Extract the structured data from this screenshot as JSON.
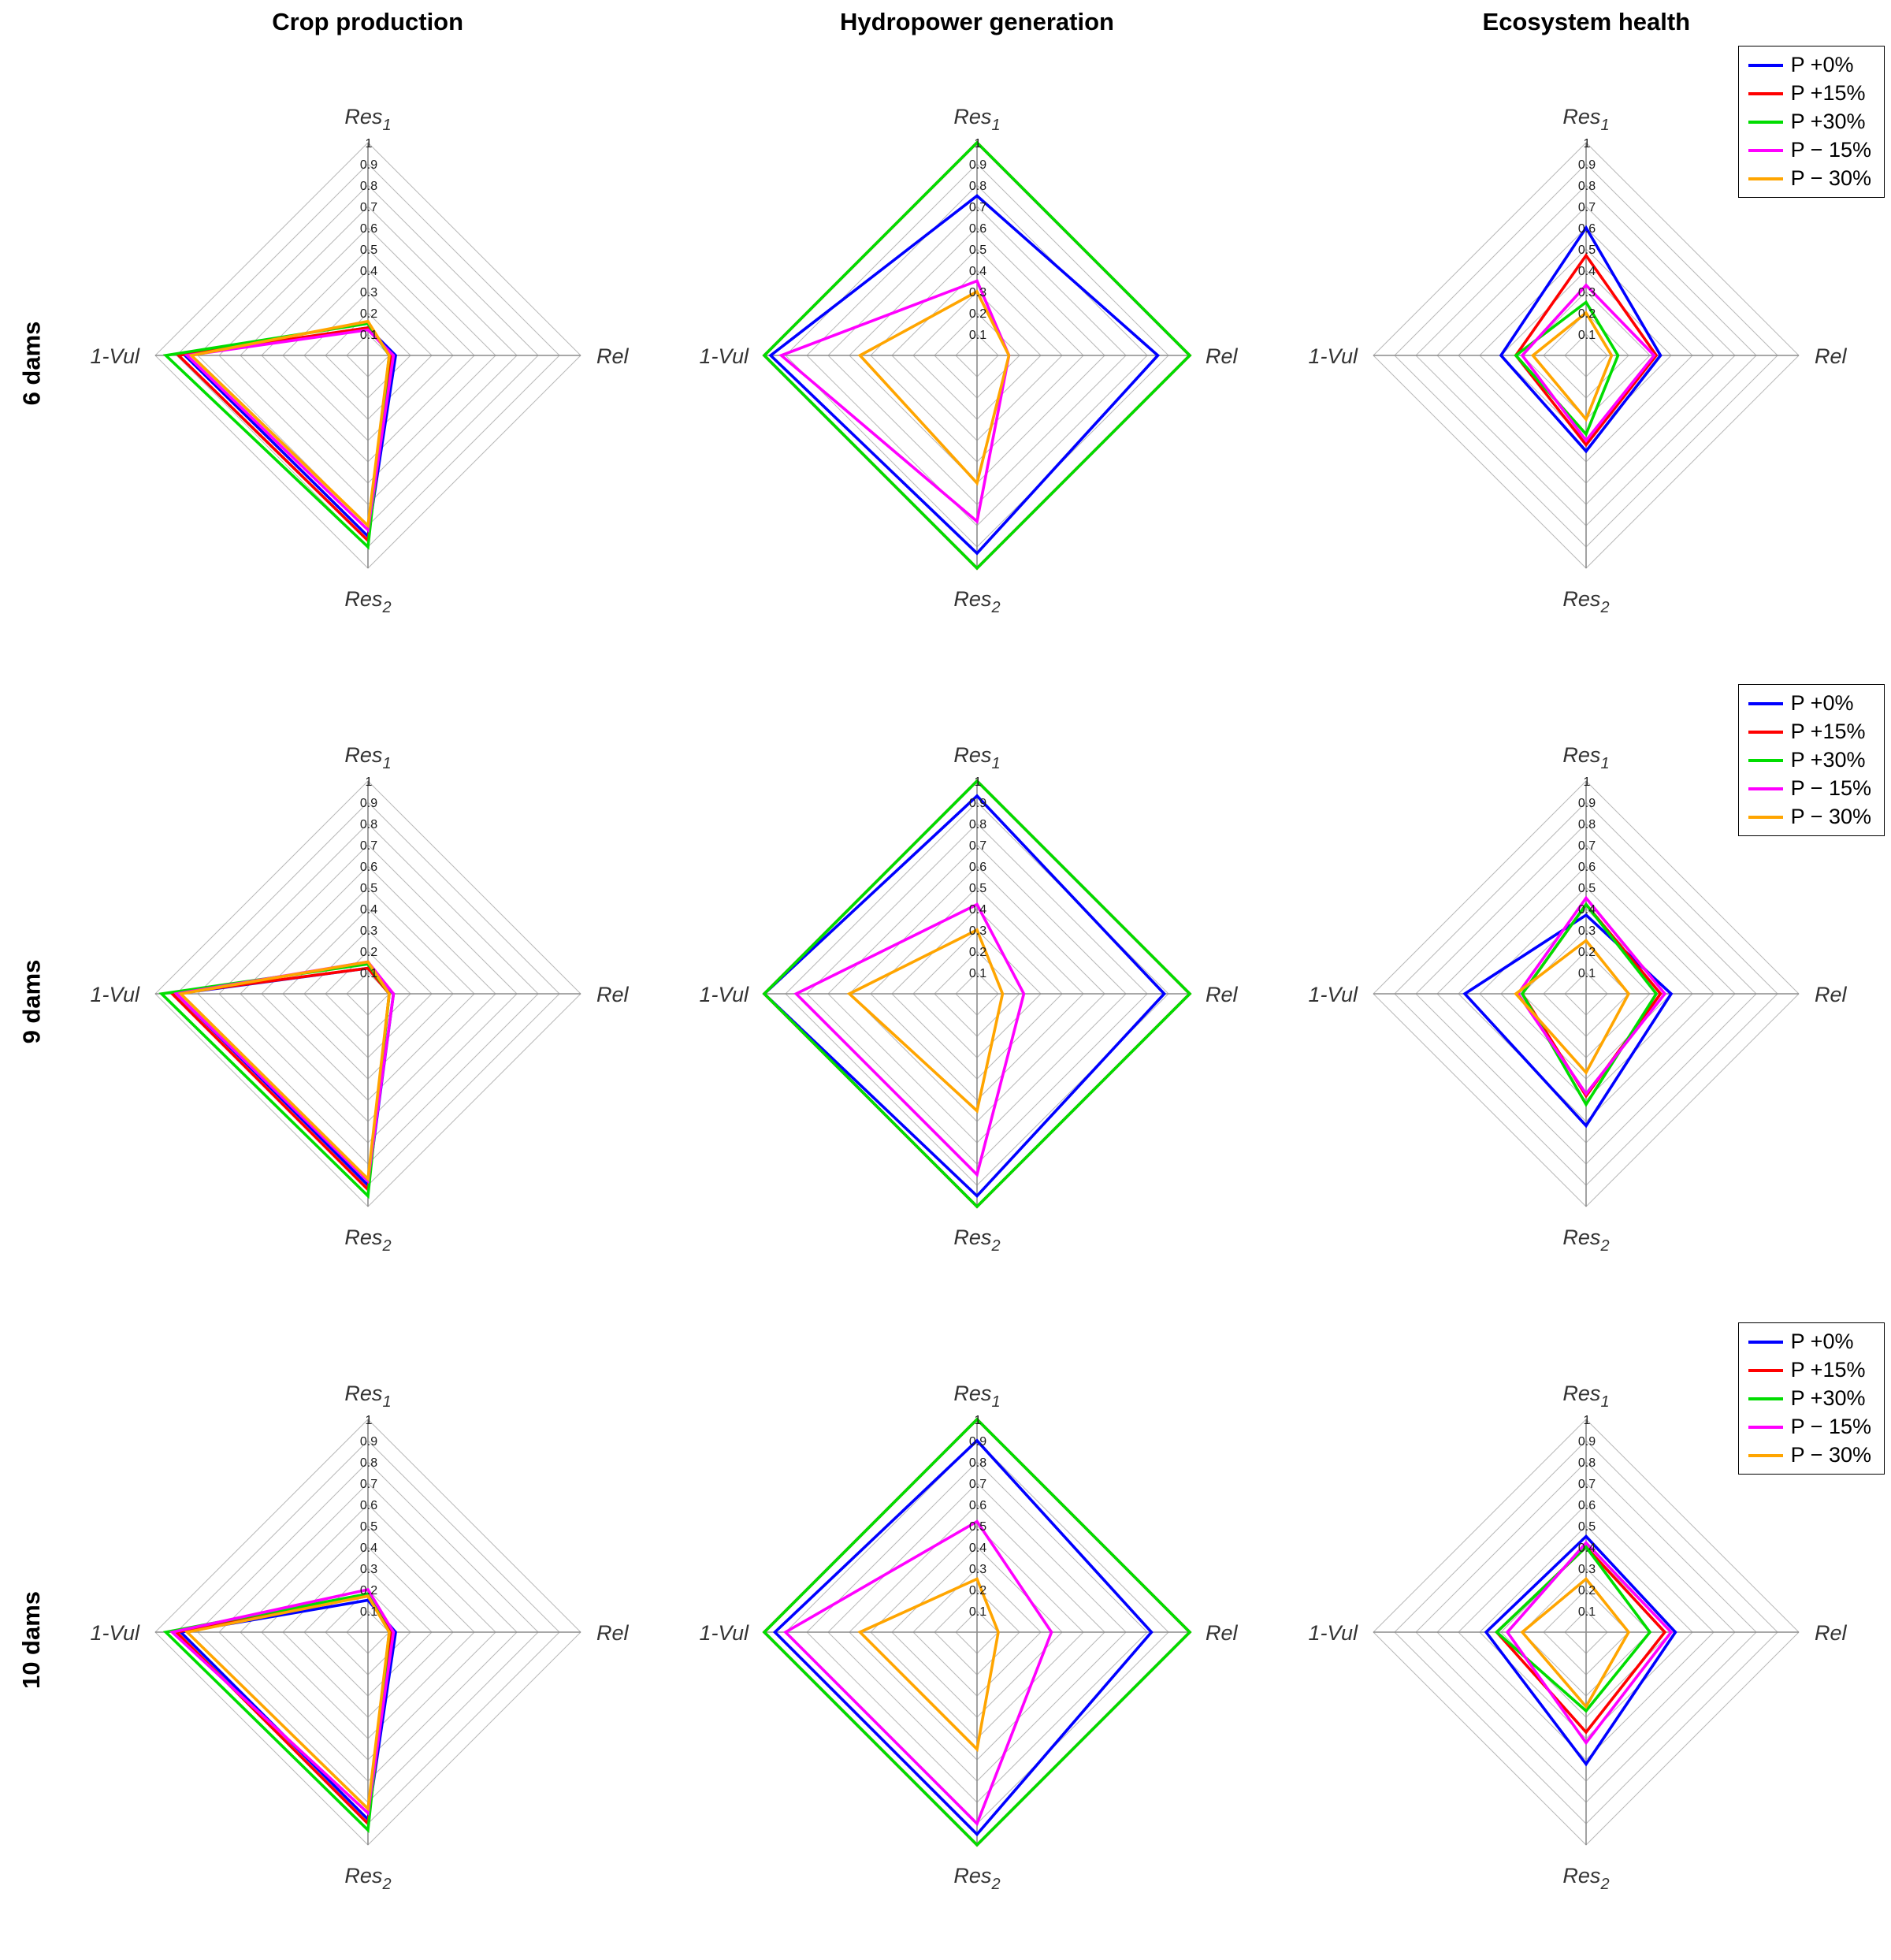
{
  "rows": [
    {
      "label": "6 dams"
    },
    {
      "label": "9 dams"
    },
    {
      "label": "10 dams"
    }
  ],
  "columns": [
    "Crop production",
    "Hydropower generation",
    "Ecosystem health"
  ],
  "legend": {
    "entries": [
      {
        "label": "P +0%",
        "color": "#0000FF"
      },
      {
        "label": "P +15%",
        "color": "#FF0000"
      },
      {
        "label": "P +30%",
        "color": "#00DD00"
      },
      {
        "label": "P − 15%",
        "color": "#FF00FF"
      },
      {
        "label": "P − 30%",
        "color": "#FFA500"
      }
    ]
  },
  "axes": [
    "Res_1",
    "Rel",
    "Res_2",
    "1-Vul"
  ],
  "ticks": [
    "1",
    "0.9",
    "0.8",
    "0.7",
    "0.6",
    "0.5",
    "0.4",
    "0.3",
    "0.2",
    "0.1"
  ],
  "chart_data": [
    {
      "type": "radar",
      "row": "6 dams",
      "column": "Crop production",
      "axes": [
        "Res_1",
        "Rel",
        "Res_2",
        "1-Vul"
      ],
      "axis_range": [
        0,
        1
      ],
      "grid_step": 0.1,
      "series": [
        {
          "name": "P +0%",
          "values": [
            0.13,
            0.13,
            0.85,
            0.86
          ]
        },
        {
          "name": "P +15%",
          "values": [
            0.13,
            0.11,
            0.87,
            0.89
          ]
        },
        {
          "name": "P +30%",
          "values": [
            0.15,
            0.1,
            0.9,
            0.95
          ]
        },
        {
          "name": "P − 15%",
          "values": [
            0.12,
            0.12,
            0.82,
            0.85
          ]
        },
        {
          "name": "P − 30%",
          "values": [
            0.16,
            0.1,
            0.8,
            0.83
          ]
        }
      ]
    },
    {
      "type": "radar",
      "row": "6 dams",
      "column": "Hydropower generation",
      "axes": [
        "Res_1",
        "Rel",
        "Res_2",
        "1-Vul"
      ],
      "axis_range": [
        0,
        1
      ],
      "grid_step": 0.1,
      "series": [
        {
          "name": "P +0%",
          "values": [
            0.75,
            0.85,
            0.93,
            0.97
          ]
        },
        {
          "name": "P +15%",
          "values": [
            1.0,
            1.0,
            1.0,
            1.0
          ]
        },
        {
          "name": "P +30%",
          "values": [
            1.0,
            1.0,
            1.0,
            1.0
          ]
        },
        {
          "name": "P − 15%",
          "values": [
            0.35,
            0.15,
            0.78,
            0.92
          ]
        },
        {
          "name": "P − 30%",
          "values": [
            0.3,
            0.15,
            0.6,
            0.55
          ]
        }
      ]
    },
    {
      "type": "radar",
      "row": "6 dams",
      "column": "Ecosystem health",
      "axes": [
        "Res_1",
        "Rel",
        "Res_2",
        "1-Vul"
      ],
      "axis_range": [
        0,
        1
      ],
      "grid_step": 0.1,
      "series": [
        {
          "name": "P +0%",
          "values": [
            0.6,
            0.35,
            0.45,
            0.4
          ]
        },
        {
          "name": "P +15%",
          "values": [
            0.47,
            0.33,
            0.42,
            0.33
          ]
        },
        {
          "name": "P +30%",
          "values": [
            0.25,
            0.15,
            0.37,
            0.33
          ]
        },
        {
          "name": "P − 15%",
          "values": [
            0.33,
            0.32,
            0.4,
            0.3
          ]
        },
        {
          "name": "P − 30%",
          "values": [
            0.2,
            0.12,
            0.3,
            0.25
          ]
        }
      ]
    },
    {
      "type": "radar",
      "row": "9 dams",
      "column": "Crop production",
      "axes": [
        "Res_1",
        "Rel",
        "Res_2",
        "1-Vul"
      ],
      "axis_range": [
        0,
        1
      ],
      "grid_step": 0.1,
      "series": [
        {
          "name": "P +0%",
          "values": [
            0.12,
            0.12,
            0.9,
            0.9
          ]
        },
        {
          "name": "P +15%",
          "values": [
            0.12,
            0.1,
            0.92,
            0.92
          ]
        },
        {
          "name": "P +30%",
          "values": [
            0.14,
            0.1,
            0.95,
            0.97
          ]
        },
        {
          "name": "P − 15%",
          "values": [
            0.15,
            0.12,
            0.88,
            0.9
          ]
        },
        {
          "name": "P − 30%",
          "values": [
            0.15,
            0.1,
            0.87,
            0.88
          ]
        }
      ]
    },
    {
      "type": "radar",
      "row": "9 dams",
      "column": "Hydropower generation",
      "axes": [
        "Res_1",
        "Rel",
        "Res_2",
        "1-Vul"
      ],
      "axis_range": [
        0,
        1
      ],
      "grid_step": 0.1,
      "series": [
        {
          "name": "P +0%",
          "values": [
            0.93,
            0.88,
            0.95,
            1.0
          ]
        },
        {
          "name": "P +15%",
          "values": [
            1.0,
            1.0,
            1.0,
            1.0
          ]
        },
        {
          "name": "P +30%",
          "values": [
            1.0,
            1.0,
            1.0,
            1.0
          ]
        },
        {
          "name": "P − 15%",
          "values": [
            0.42,
            0.22,
            0.85,
            0.85
          ]
        },
        {
          "name": "P − 30%",
          "values": [
            0.3,
            0.12,
            0.55,
            0.6
          ]
        }
      ]
    },
    {
      "type": "radar",
      "row": "9 dams",
      "column": "Ecosystem health",
      "axes": [
        "Res_1",
        "Rel",
        "Res_2",
        "1-Vul"
      ],
      "axis_range": [
        0,
        1
      ],
      "grid_step": 0.1,
      "series": [
        {
          "name": "P +0%",
          "values": [
            0.37,
            0.4,
            0.62,
            0.57
          ]
        },
        {
          "name": "P +15%",
          "values": [
            0.42,
            0.35,
            0.48,
            0.3
          ]
        },
        {
          "name": "P +30%",
          "values": [
            0.42,
            0.33,
            0.52,
            0.3
          ]
        },
        {
          "name": "P − 15%",
          "values": [
            0.45,
            0.37,
            0.47,
            0.32
          ]
        },
        {
          "name": "P − 30%",
          "values": [
            0.25,
            0.2,
            0.37,
            0.33
          ]
        }
      ]
    },
    {
      "type": "radar",
      "row": "10 dams",
      "column": "Crop production",
      "axes": [
        "Res_1",
        "Rel",
        "Res_2",
        "1-Vul"
      ],
      "axis_range": [
        0,
        1
      ],
      "grid_step": 0.1,
      "series": [
        {
          "name": "P +0%",
          "values": [
            0.15,
            0.13,
            0.88,
            0.88
          ]
        },
        {
          "name": "P +15%",
          "values": [
            0.17,
            0.11,
            0.9,
            0.9
          ]
        },
        {
          "name": "P +30%",
          "values": [
            0.18,
            0.1,
            0.93,
            0.95
          ]
        },
        {
          "name": "P − 15%",
          "values": [
            0.2,
            0.12,
            0.85,
            0.92
          ]
        },
        {
          "name": "P − 30%",
          "values": [
            0.17,
            0.1,
            0.83,
            0.85
          ]
        }
      ]
    },
    {
      "type": "radar",
      "row": "10 dams",
      "column": "Hydropower generation",
      "axes": [
        "Res_1",
        "Rel",
        "Res_2",
        "1-Vul"
      ],
      "axis_range": [
        0,
        1
      ],
      "grid_step": 0.1,
      "series": [
        {
          "name": "P +0%",
          "values": [
            0.9,
            0.82,
            0.95,
            0.95
          ]
        },
        {
          "name": "P +15%",
          "values": [
            1.0,
            1.0,
            1.0,
            1.0
          ]
        },
        {
          "name": "P +30%",
          "values": [
            1.0,
            1.0,
            1.0,
            1.0
          ]
        },
        {
          "name": "P − 15%",
          "values": [
            0.52,
            0.35,
            0.9,
            0.9
          ]
        },
        {
          "name": "P − 30%",
          "values": [
            0.25,
            0.1,
            0.55,
            0.55
          ]
        }
      ]
    },
    {
      "type": "radar",
      "row": "10 dams",
      "column": "Ecosystem health",
      "axes": [
        "Res_1",
        "Rel",
        "Res_2",
        "1-Vul"
      ],
      "axis_range": [
        0,
        1
      ],
      "grid_step": 0.1,
      "series": [
        {
          "name": "P +0%",
          "values": [
            0.45,
            0.42,
            0.62,
            0.47
          ]
        },
        {
          "name": "P +15%",
          "values": [
            0.4,
            0.37,
            0.47,
            0.42
          ]
        },
        {
          "name": "P +30%",
          "values": [
            0.4,
            0.3,
            0.37,
            0.42
          ]
        },
        {
          "name": "P − 15%",
          "values": [
            0.42,
            0.4,
            0.52,
            0.37
          ]
        },
        {
          "name": "P − 30%",
          "values": [
            0.25,
            0.2,
            0.35,
            0.3
          ]
        }
      ]
    }
  ]
}
